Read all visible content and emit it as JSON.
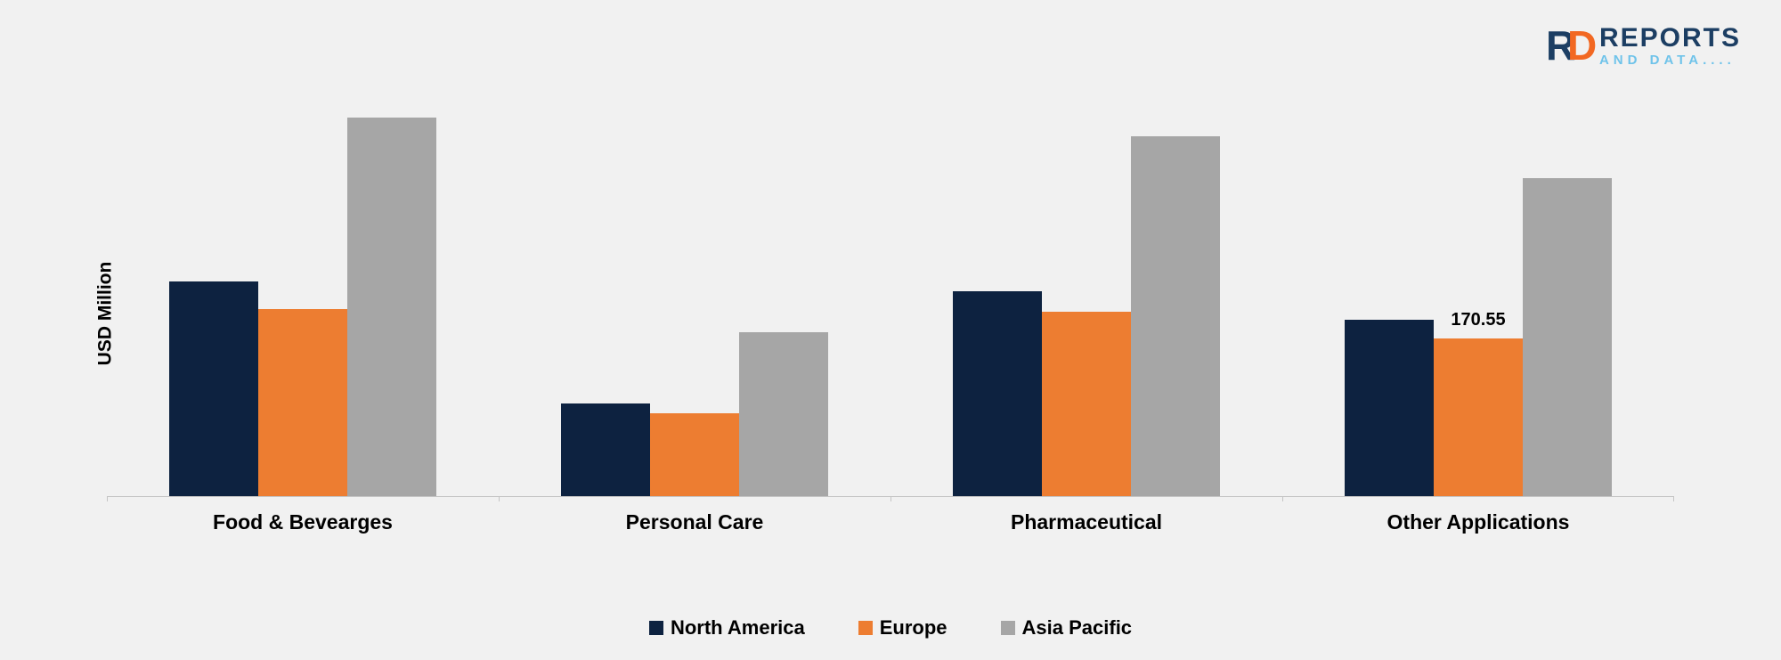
{
  "background": "#f1f1f1",
  "logo": {
    "mark_r": "R",
    "mark_d": "D",
    "text_main": "REPORTS",
    "text_sub": "AND DATA....",
    "colors": {
      "navy": "#1c3e63",
      "orange": "#f26822",
      "light_blue": "#6fc3ea"
    }
  },
  "chart_data": {
    "type": "bar",
    "title": "",
    "xlabel": "",
    "ylabel": "USD Million",
    "ylim": [
      0,
      450
    ],
    "grid": false,
    "legend_position": "bottom",
    "categories": [
      "Food & Bevearges",
      "Personal Care",
      "Pharmaceutical",
      "Other Applications"
    ],
    "series": [
      {
        "name": "North America",
        "color": "#0d2240",
        "values": [
          232,
          100,
          222,
          191
        ]
      },
      {
        "name": "Europe",
        "color": "#ed7d31",
        "values": [
          202,
          90,
          199,
          170.55
        ]
      },
      {
        "name": "Asia Pacific",
        "color": "#a6a6a6",
        "values": [
          410,
          177,
          389,
          344
        ]
      }
    ],
    "data_labels": [
      {
        "series": "Europe",
        "category": "Other Applications",
        "text": "170.55"
      }
    ]
  }
}
